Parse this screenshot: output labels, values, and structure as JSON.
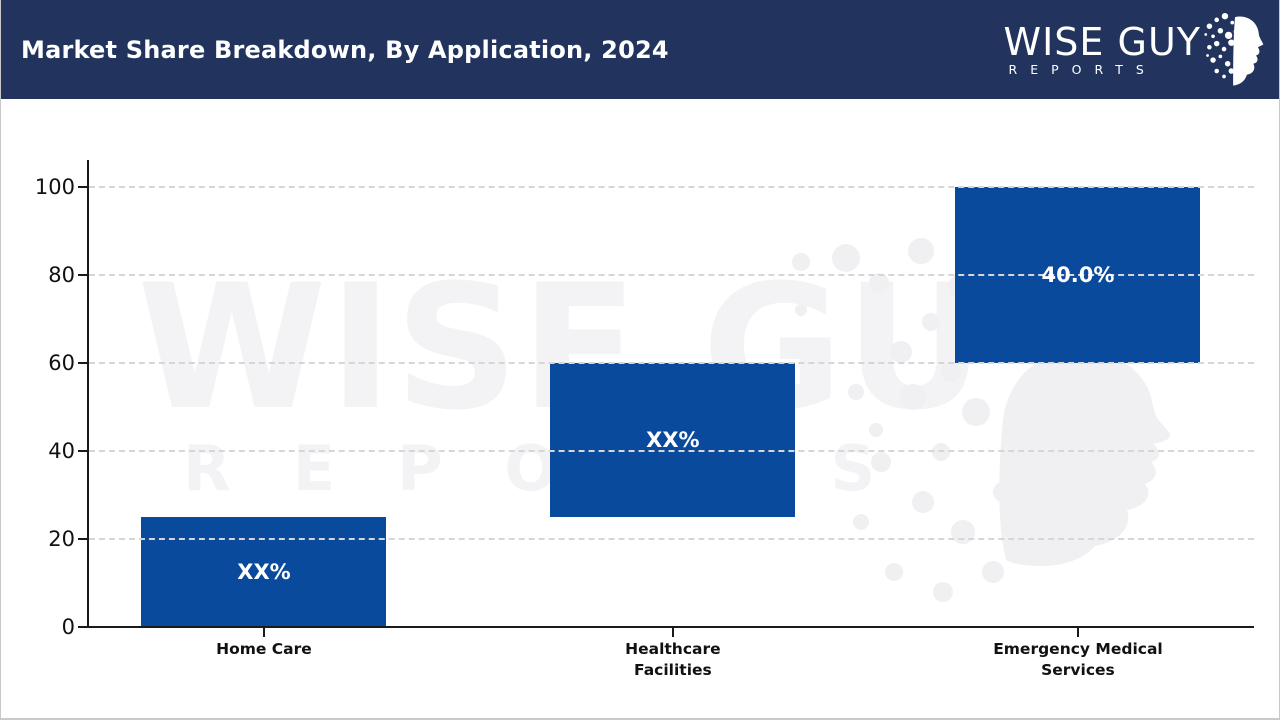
{
  "header": {
    "title": "Market Share Breakdown, By Application, 2024",
    "logo": {
      "line1": "WISE GUY",
      "line2": "REPORTS"
    }
  },
  "watermark": {
    "line1": "WISE GUY",
    "line2": "REPORTS"
  },
  "chart_data": {
    "type": "bar",
    "subtype": "floating-range",
    "title": "Market Share Breakdown, By Application, 2024",
    "categories": [
      "Home Care",
      "Healthcare\nFacilities",
      "Emergency Medical\nServices"
    ],
    "series": [
      {
        "name": "Market share (%)",
        "segments": [
          {
            "category": "Home Care",
            "start": 0,
            "end": 25,
            "label": "XX%"
          },
          {
            "category": "Healthcare\nFacilities",
            "start": 25,
            "end": 60,
            "label": "XX%"
          },
          {
            "category": "Emergency Medical\nServices",
            "start": 60,
            "end": 100,
            "label": "40.0%"
          }
        ]
      }
    ],
    "xlabel": "",
    "ylabel": "",
    "ylim": [
      0,
      106
    ],
    "yticks": [
      0,
      20,
      40,
      60,
      80,
      100
    ],
    "grid": "horizontal-dashed",
    "legend": "none",
    "colors": {
      "bar": "#0a4a9c",
      "bar_label": "#ffffff",
      "axis": "#1a1a1a",
      "gridline": "#d6d6d6",
      "header_bg": "#22345d",
      "page_bg": "#ffffff",
      "watermark": "#f3f3f5"
    }
  }
}
